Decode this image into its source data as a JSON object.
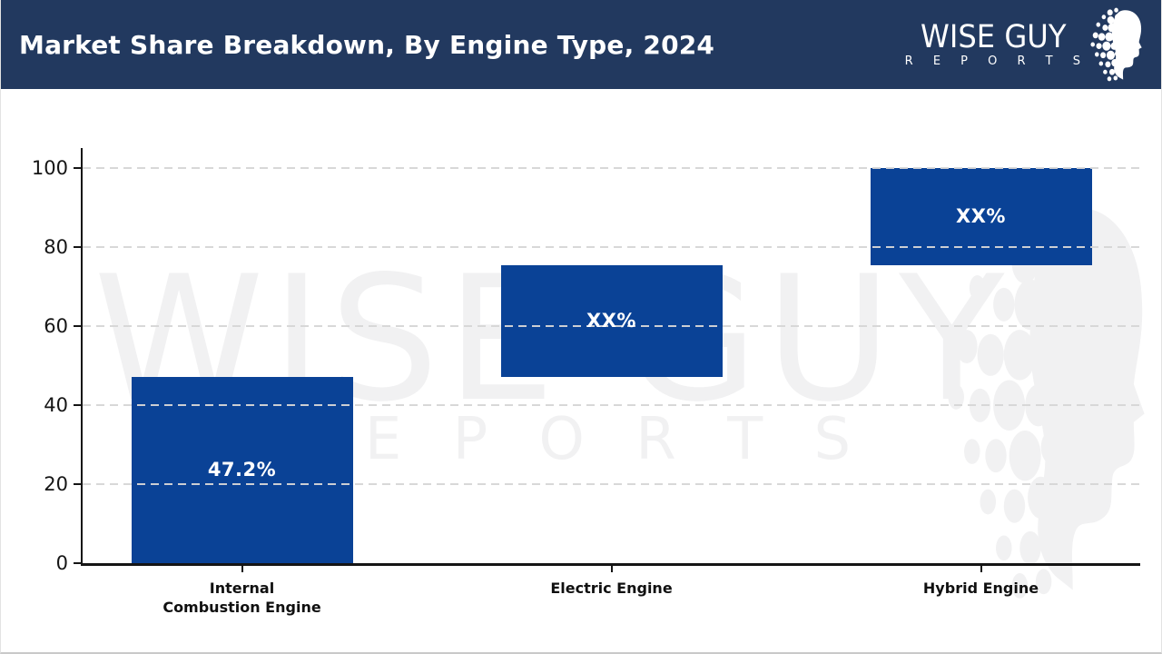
{
  "header": {
    "title": "Market Share Breakdown, By Engine Type, 2024"
  },
  "logo": {
    "line1": "WISE GUY",
    "line2": "R E P O R T S",
    "face_icon": "dotted-head-profile"
  },
  "watermark": {
    "line1": "WISE GUY",
    "line2": "R E P O R T S",
    "face_icon": "dotted-head-profile"
  },
  "colors": {
    "header_bg": "#22395f",
    "bar": "#0a4296",
    "bar_label": "#ffffff",
    "gridline": "#d6d6d6",
    "axis": "#151515",
    "watermark": "#f1f1f2"
  },
  "chart_data": {
    "type": "bar",
    "subtype": "stacked-waterfall",
    "title": "Market Share Breakdown, By Engine Type, 2024",
    "categories": [
      "Internal\nCombustion Engine",
      "Electric Engine",
      "Hybrid Engine"
    ],
    "segments": [
      {
        "category": "Internal Combustion Engine",
        "start": 0,
        "end": 47.2,
        "value_label": "47.2%"
      },
      {
        "category": "Electric Engine",
        "start": 47.2,
        "end": 75.4,
        "value_label": "XX%"
      },
      {
        "category": "Hybrid Engine",
        "start": 75.4,
        "end": 100,
        "value_label": "XX%"
      }
    ],
    "yticks": [
      0,
      20,
      40,
      60,
      80,
      100
    ],
    "ylim": [
      0,
      105
    ],
    "xlabel": "",
    "ylabel": "",
    "grid": true,
    "gridline_style": "dashed",
    "legend": false
  }
}
